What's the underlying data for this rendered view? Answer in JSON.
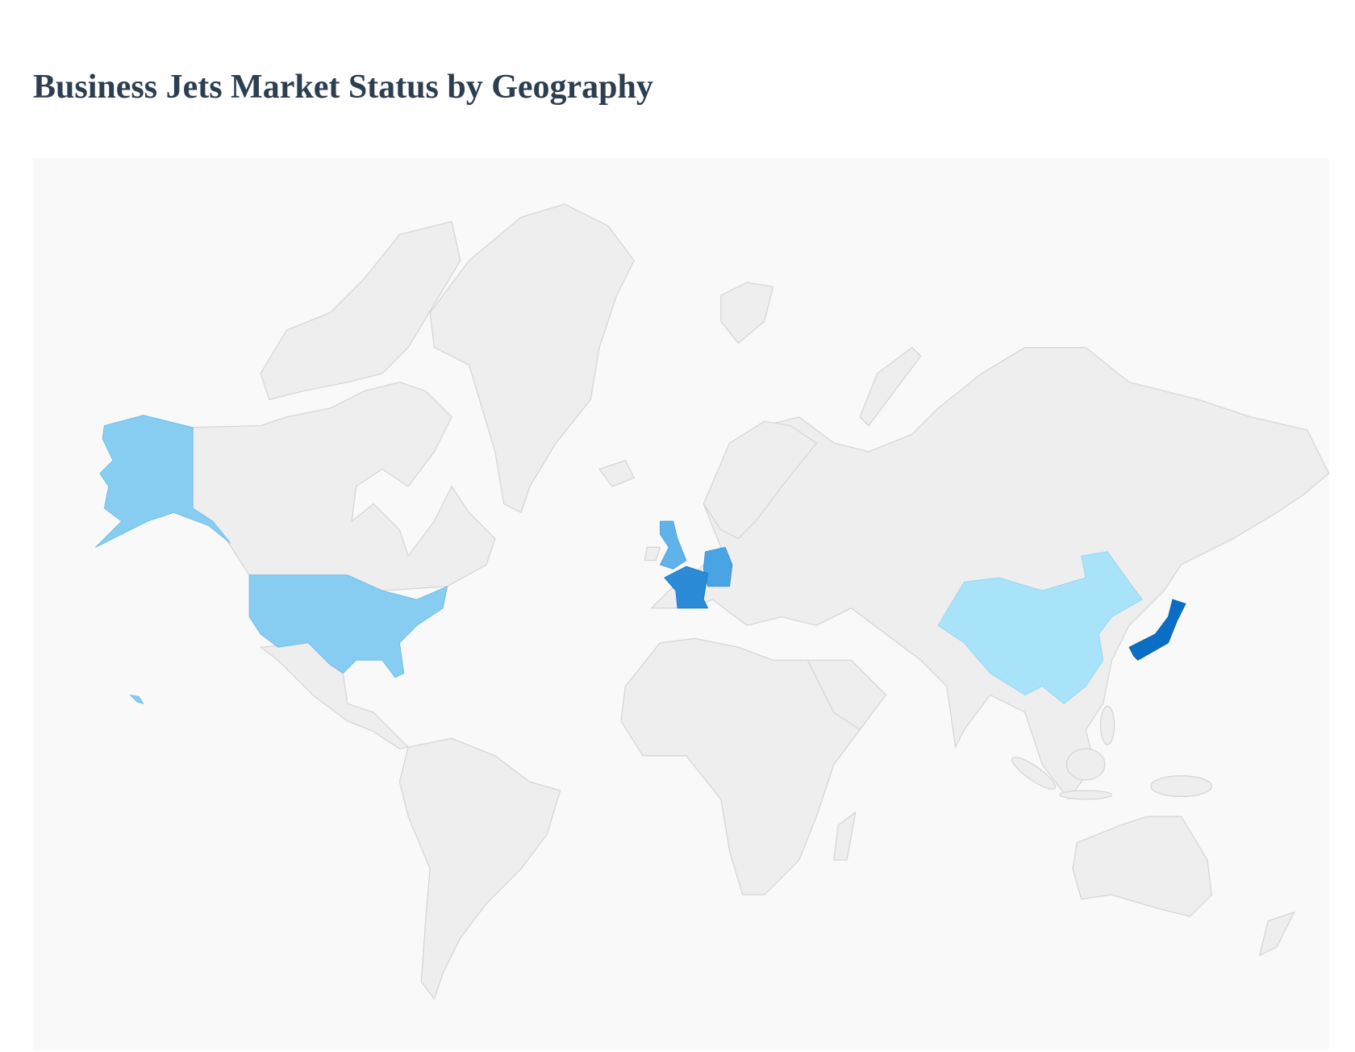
{
  "title": "Business Jets Market Status by Geography",
  "colors": {
    "panel_background": "#f9f9f9",
    "land": "#eeeeee",
    "border": "#d6d6d6",
    "title": "#2c3e50"
  },
  "chart_data": {
    "type": "choropleth",
    "title": "Business Jets Market Status by Geography",
    "projection": "mercator",
    "highlighted_regions": [
      {
        "region": "United States",
        "color": "#87cdf2"
      },
      {
        "region": "China",
        "color": "#a9e3fa"
      },
      {
        "region": "United Kingdom",
        "color": "#5fb3e9"
      },
      {
        "region": "Germany",
        "color": "#4aa3e3"
      },
      {
        "region": "France",
        "color": "#2b8bd7"
      },
      {
        "region": "Japan",
        "color": "#0a6fc4"
      }
    ],
    "legend": "none"
  }
}
